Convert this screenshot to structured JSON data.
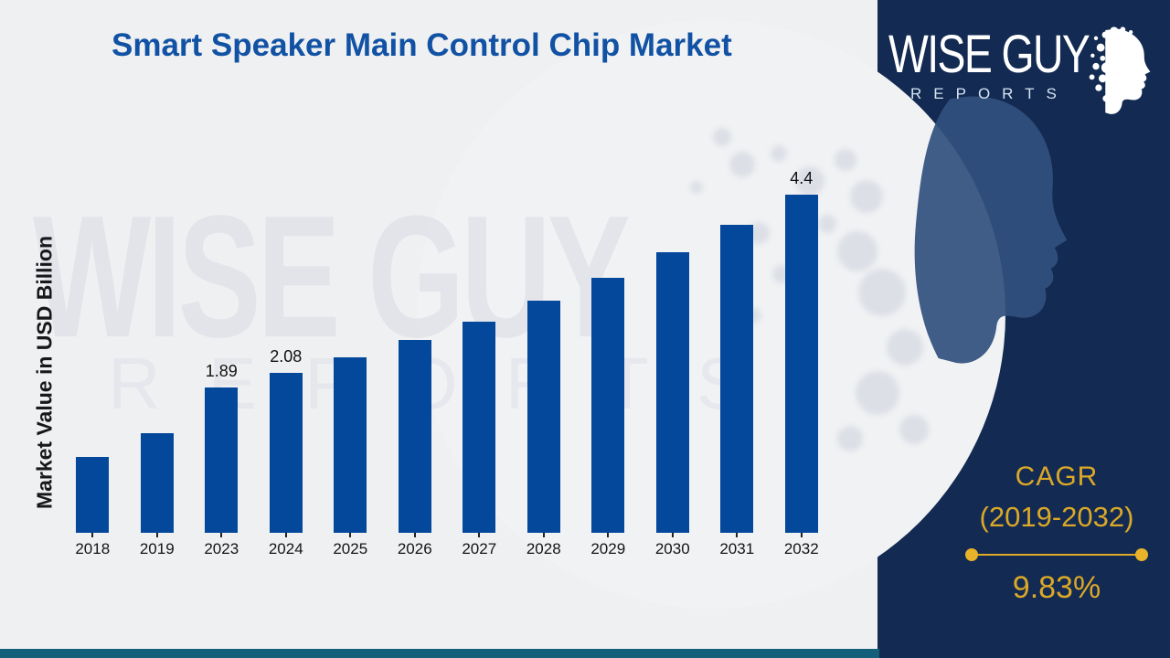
{
  "header": {
    "title": "Smart Speaker Main Control Chip Market"
  },
  "y_axis_label": "Market Value in USD Billion",
  "watermark": {
    "brand": "WISE GUY",
    "sub": "REPORTS"
  },
  "logo": {
    "brand": "WISE GUY",
    "sub": "REPORTS",
    "face_icon": "face-profile-dots-icon"
  },
  "cagr": {
    "label": "CAGR",
    "range": "(2019-2032)",
    "value": "9.83%"
  },
  "colors": {
    "bar": "#04489c",
    "navy_panel": "#132a52",
    "accent_gold": "#dba827",
    "title_blue": "#1152a4",
    "teal_strip": "#14607a",
    "background": "#eff0f2"
  },
  "chart_data": {
    "type": "bar",
    "title": "Smart Speaker Main Control Chip Market",
    "categories": [
      "2018",
      "2019",
      "2023",
      "2024",
      "2025",
      "2026",
      "2027",
      "2028",
      "2029",
      "2030",
      "2031",
      "2032"
    ],
    "values": [
      0.99,
      1.3,
      1.89,
      2.08,
      2.28,
      2.51,
      2.75,
      3.02,
      3.32,
      3.65,
      4.01,
      4.4
    ],
    "data_labels": {
      "2023": "1.89",
      "2024": "2.08",
      "2032": "4.4"
    },
    "xlabel": "",
    "ylabel": "Market Value in USD Billion",
    "ylim": [
      0,
      4.6
    ],
    "grid": false,
    "legend": false,
    "bar_color": "#04489c"
  }
}
